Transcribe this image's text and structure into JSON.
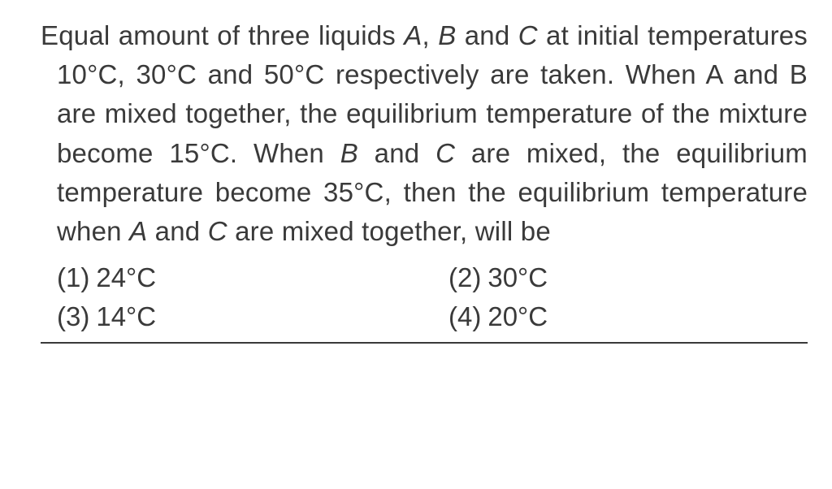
{
  "question": {
    "p1": "Equal amount of three liquids ",
    "A": "A",
    "comma1": ", ",
    "B": "B",
    "and1": " and ",
    "C": "C",
    "p2": " at initial temperatures 10°C, 30°C and 50°C respectively are taken. When A and B are mixed together, the equilibrium temperature of the mixture become 15°C. When ",
    "B2": "B",
    "and2": " and ",
    "C2": "C",
    "p3": " are mixed, the equilibrium temperature become 35°C, then the equilibrium temperature when ",
    "A2": "A",
    "and3": " and ",
    "C3": "C",
    "p4": " are mixed together, will be"
  },
  "options": {
    "o1": {
      "num": "(1)",
      "text": "24°C"
    },
    "o2": {
      "num": "(2)",
      "text": "30°C"
    },
    "o3": {
      "num": "(3)",
      "text": "14°C"
    },
    "o4": {
      "num": "(4)",
      "text": "20°C"
    }
  },
  "style": {
    "text_color": "#3a3a3a",
    "background": "#ffffff",
    "font_size_pt": 25,
    "option_font_size_pt": 25,
    "rule_color": "#3a3a3a"
  }
}
